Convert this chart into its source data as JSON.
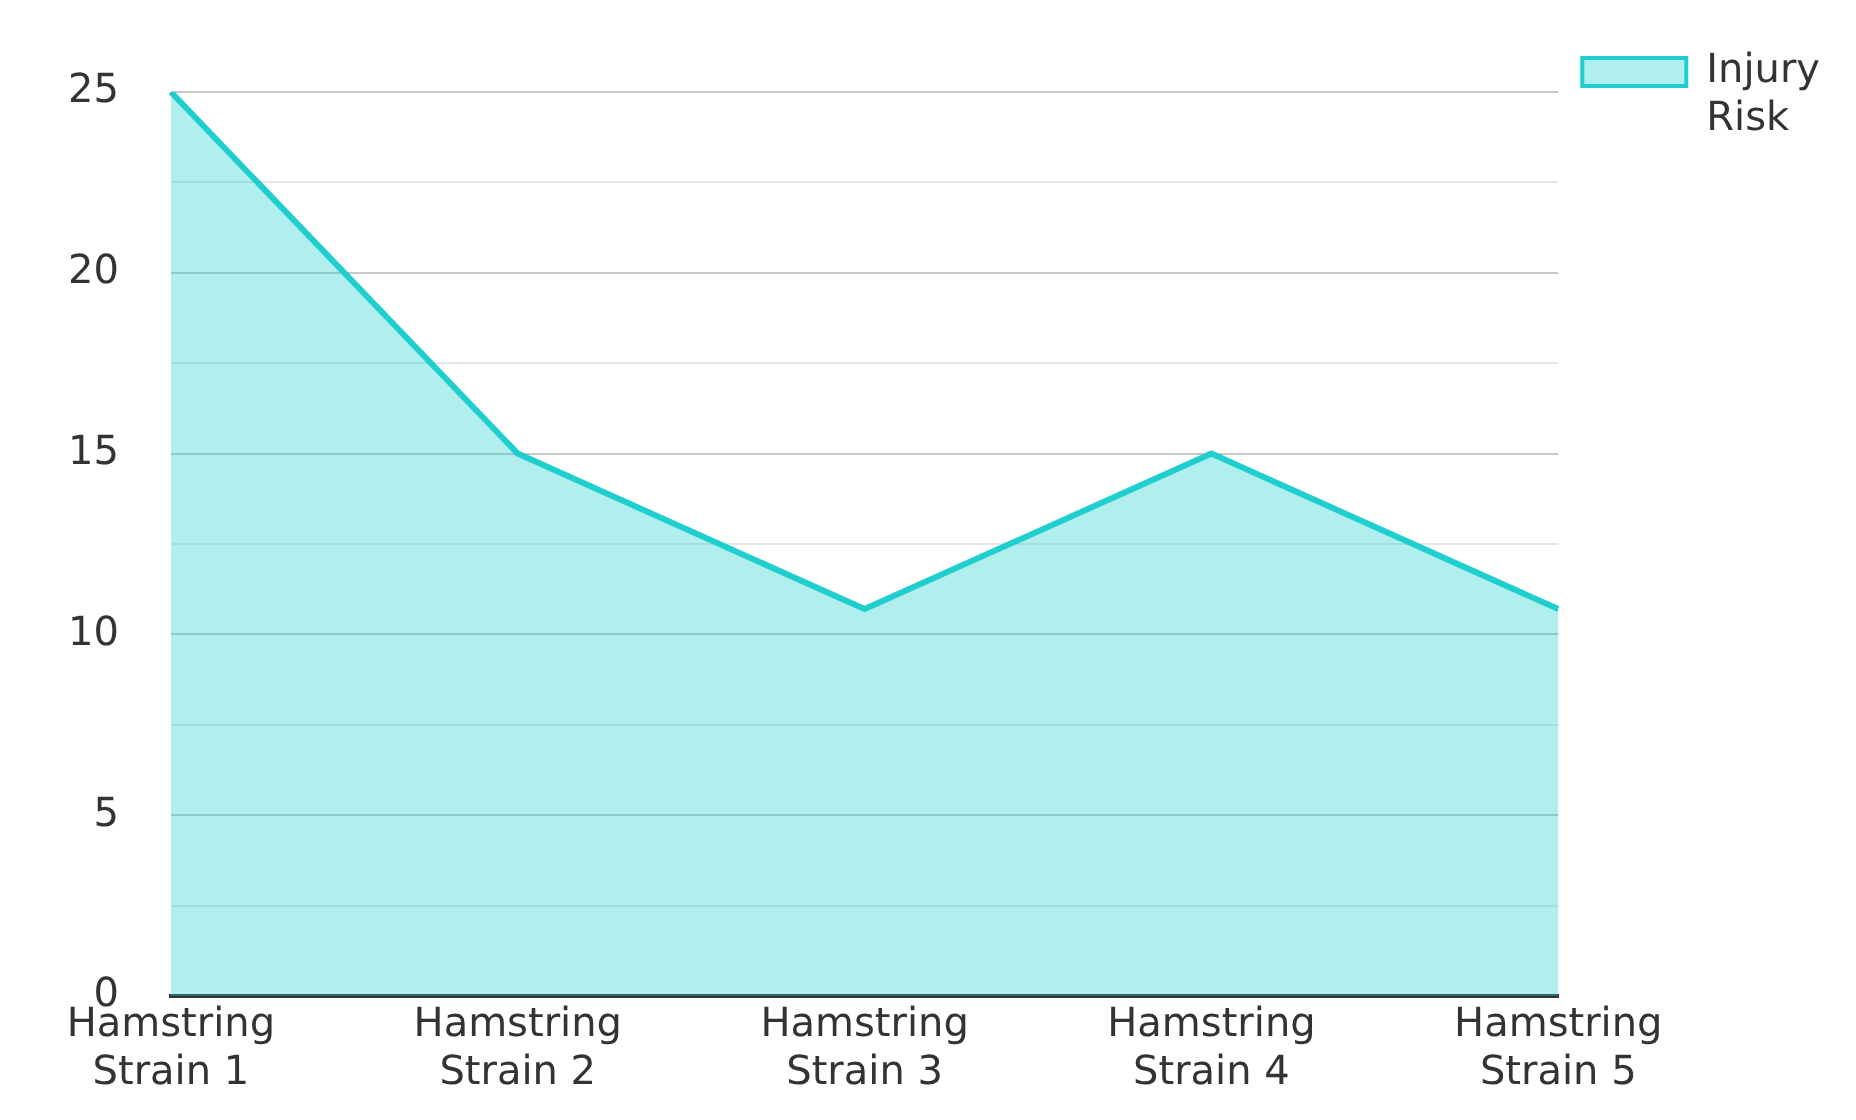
{
  "chart_data": {
    "type": "area",
    "categories": [
      "Hamstring Strain 1",
      "Hamstring Strain 2",
      "Hamstring Strain 3",
      "Hamstring Strain 4",
      "Hamstring Strain 5"
    ],
    "series": [
      {
        "name": "Injury Risk",
        "color": "#1fcfcf",
        "values": [
          25,
          15,
          10.7,
          15,
          10.7
        ]
      }
    ],
    "ylim": [
      0,
      25
    ],
    "yticks": [
      0,
      {
        "value": 2.5,
        "label": null
      },
      5,
      {
        "value": 7.5,
        "label": null
      },
      10,
      {
        "value": 12.5,
        "label": null
      },
      15,
      {
        "value": 17.5,
        "label": null
      },
      20,
      {
        "value": 22.5,
        "label": null
      },
      25
    ],
    "grid": "y",
    "legend": "top right"
  }
}
